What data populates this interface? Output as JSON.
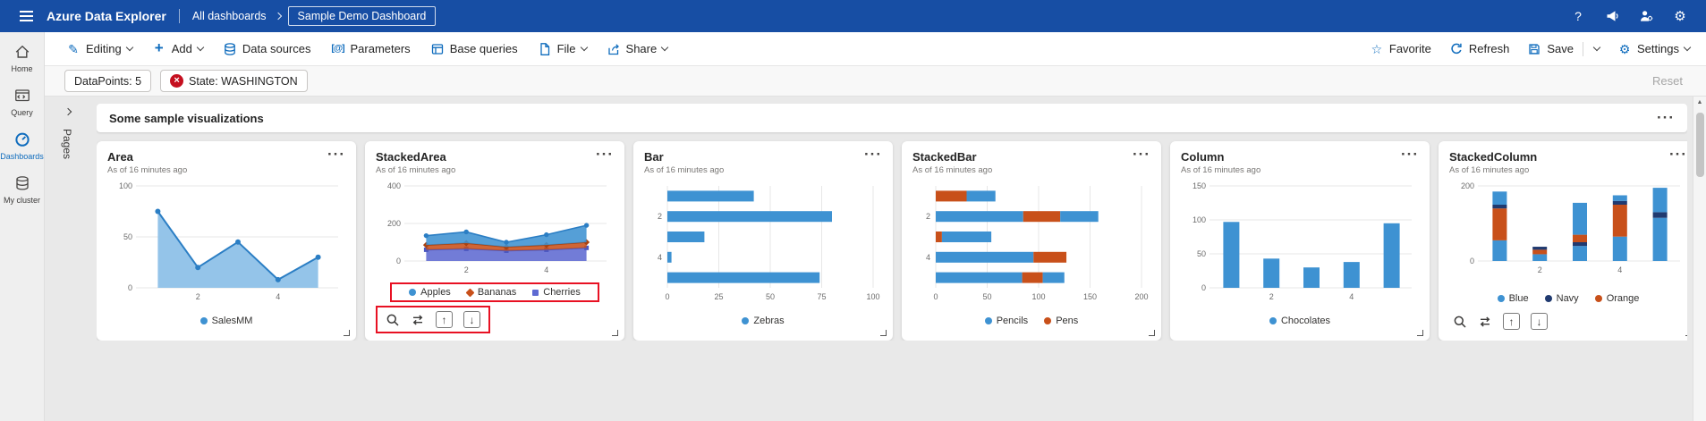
{
  "ui": {
    "glyphs": {
      "help": "?",
      "gear": "⚙",
      "star": "☆",
      "plus": "+",
      "pencil": "✎",
      "parameters": "[@]",
      "more": "···",
      "up_arrow": "↑",
      "down_arrow": "↓",
      "scroll_up": "▲",
      "close": "×"
    },
    "palette": {
      "topbar": "#174ea4",
      "accent": "#0f6cbd",
      "annotation_red": "#e81123",
      "blue": "#3e92d2",
      "blue_line": "#2b7ec4",
      "blue_fill": "#8ec1e8",
      "orange": "#c8501a",
      "orange_line": "#a84210",
      "violet": "#5e6ad2",
      "violet_line": "#4b57c0",
      "navy": "#203a70",
      "navy_line": "#18294f",
      "grid": "#e7e7e7",
      "axis": "#6b6b6b"
    }
  },
  "topbar": {
    "app_title": "Azure Data Explorer",
    "breadcrumb_root": "All dashboards",
    "breadcrumb_current": "Sample Demo Dashboard"
  },
  "toolbar": {
    "editing": "Editing",
    "add": "Add",
    "data_sources": "Data sources",
    "parameters": "Parameters",
    "base_queries": "Base queries",
    "file": "File",
    "share": "Share",
    "favorite": "Favorite",
    "refresh": "Refresh",
    "save": "Save",
    "settings": "Settings"
  },
  "filters": {
    "datapoints": "DataPoints: 5",
    "state": "State: WASHINGTON",
    "reset": "Reset"
  },
  "sidebar": {
    "items": [
      {
        "label": "Home",
        "active": false
      },
      {
        "label": "Query",
        "active": false
      },
      {
        "label": "Dashboards",
        "active": true
      },
      {
        "label": "My cluster",
        "active": false
      }
    ]
  },
  "pages": {
    "label": "Pages"
  },
  "section": {
    "title": "Some sample visualizations"
  },
  "tiles": [
    {
      "title": "Area",
      "subtitle": "As of 16 minutes ago",
      "chart": 0,
      "icons": false,
      "legend": [
        {
          "label": "SalesMM",
          "color": "blue",
          "shape": "circle"
        }
      ]
    },
    {
      "title": "StackedArea",
      "subtitle": "As of 16 minutes ago",
      "chart": 1,
      "icons": true,
      "annotated": {
        "legend": true,
        "icons": true
      },
      "legend": [
        {
          "label": "Apples",
          "color": "blue",
          "shape": "circle"
        },
        {
          "label": "Bananas",
          "color": "orange",
          "shape": "diamond"
        },
        {
          "label": "Cherries",
          "color": "violet",
          "shape": "square"
        }
      ]
    },
    {
      "title": "Bar",
      "subtitle": "As of 16 minutes ago",
      "chart": 2,
      "icons": false,
      "legend": [
        {
          "label": "Zebras",
          "color": "blue",
          "shape": "circle"
        }
      ]
    },
    {
      "title": "StackedBar",
      "subtitle": "As of 16 minutes ago",
      "chart": 3,
      "icons": false,
      "legend": [
        {
          "label": "Pencils",
          "color": "blue",
          "shape": "circle"
        },
        {
          "label": "Pens",
          "color": "orange",
          "shape": "circle"
        }
      ]
    },
    {
      "title": "Column",
      "subtitle": "As of 16 minutes ago",
      "chart": 4,
      "icons": false,
      "legend": [
        {
          "label": "Chocolates",
          "color": "blue",
          "shape": "circle"
        }
      ]
    },
    {
      "title": "StackedColumn",
      "subtitle": "As of 16 minutes ago",
      "chart": 5,
      "icons": true,
      "legend": [
        {
          "label": "Blue",
          "color": "blue",
          "shape": "circle"
        },
        {
          "label": "Navy",
          "color": "navy",
          "shape": "circle"
        },
        {
          "label": "Orange",
          "color": "orange",
          "shape": "circle"
        }
      ]
    }
  ],
  "chart_data": [
    {
      "type": "area",
      "title": "Area",
      "x": [
        1,
        2,
        3,
        4,
        5
      ],
      "series": [
        {
          "name": "SalesMM",
          "color": "blue",
          "values": [
            75,
            20,
            45,
            8,
            30
          ]
        }
      ],
      "ylim": [
        0,
        100
      ],
      "yticks": [
        0,
        50,
        100
      ],
      "xticks": [
        2,
        4
      ]
    },
    {
      "type": "stacked-area",
      "title": "StackedArea",
      "x": [
        1,
        2,
        3,
        4,
        5
      ],
      "series": [
        {
          "name": "Cherries",
          "color": "violet",
          "marker": "square",
          "values": [
            60,
            65,
            55,
            60,
            70
          ]
        },
        {
          "name": "Bananas",
          "color": "orange",
          "marker": "diamond",
          "values": [
            25,
            30,
            20,
            25,
            30
          ]
        },
        {
          "name": "Apples",
          "color": "blue",
          "marker": "circle",
          "values": [
            50,
            60,
            25,
            55,
            90
          ]
        }
      ],
      "ylim": [
        0,
        400
      ],
      "yticks": [
        0,
        200,
        400
      ],
      "xticks": [
        2,
        4
      ]
    },
    {
      "type": "bar-h",
      "title": "Bar",
      "categories": [
        1,
        2,
        3,
        4,
        5
      ],
      "series": [
        {
          "name": "Zebras",
          "color": "blue",
          "values": [
            42,
            80,
            18,
            2,
            74
          ]
        }
      ],
      "xlim": [
        0,
        100
      ],
      "xticks": [
        0,
        25,
        50,
        75,
        100
      ],
      "ytick_labels": [
        2,
        4
      ]
    },
    {
      "type": "stacked-bar-h",
      "title": "StackedBar",
      "categories": [
        1,
        2,
        3,
        4,
        5
      ],
      "series_names": [
        "Pencils",
        "Pens"
      ],
      "rows": [
        [
          {
            "c": "orange",
            "v": 30
          },
          {
            "c": "blue",
            "v": 28
          }
        ],
        [
          {
            "c": "blue",
            "v": 85
          },
          {
            "c": "orange",
            "v": 36
          },
          {
            "c": "blue",
            "v": 37
          }
        ],
        [
          {
            "c": "orange",
            "v": 6
          },
          {
            "c": "blue",
            "v": 48
          }
        ],
        [
          {
            "c": "blue",
            "v": 95
          },
          {
            "c": "orange",
            "v": 32
          }
        ],
        [
          {
            "c": "blue",
            "v": 84
          },
          {
            "c": "orange",
            "v": 20
          },
          {
            "c": "blue",
            "v": 21
          }
        ]
      ],
      "xlim": [
        0,
        200
      ],
      "xticks": [
        0,
        50,
        100,
        150,
        200
      ],
      "ytick_labels": [
        2,
        4
      ]
    },
    {
      "type": "column",
      "title": "Column",
      "categories": [
        1,
        2,
        3,
        4,
        5
      ],
      "series": [
        {
          "name": "Chocolates",
          "color": "blue",
          "values": [
            97,
            43,
            30,
            38,
            95
          ]
        }
      ],
      "ylim": [
        0,
        150
      ],
      "yticks": [
        0,
        50,
        100,
        150
      ],
      "xticks": [
        2,
        4
      ]
    },
    {
      "type": "stacked-column",
      "title": "StackedColumn",
      "categories": [
        1,
        2,
        3,
        4,
        5
      ],
      "series_names": [
        "Blue",
        "Navy",
        "Orange"
      ],
      "columns": [
        [
          {
            "c": "blue",
            "v": 55
          },
          {
            "c": "orange",
            "v": 85
          },
          {
            "c": "navy",
            "v": 10
          },
          {
            "c": "blue",
            "v": 35
          }
        ],
        [
          {
            "c": "blue",
            "v": 18
          },
          {
            "c": "orange",
            "v": 12
          },
          {
            "c": "navy",
            "v": 8
          }
        ],
        [
          {
            "c": "blue",
            "v": 40
          },
          {
            "c": "navy",
            "v": 10
          },
          {
            "c": "orange",
            "v": 20
          },
          {
            "c": "blue",
            "v": 85
          }
        ],
        [
          {
            "c": "blue",
            "v": 65
          },
          {
            "c": "orange",
            "v": 85
          },
          {
            "c": "navy",
            "v": 10
          },
          {
            "c": "blue",
            "v": 15
          }
        ],
        [
          {
            "c": "blue",
            "v": 115
          },
          {
            "c": "navy",
            "v": 15
          },
          {
            "c": "blue",
            "v": 65
          }
        ]
      ],
      "ylim": [
        0,
        200
      ],
      "yticks": [
        0,
        200
      ],
      "xticks": [
        2,
        4
      ]
    }
  ]
}
